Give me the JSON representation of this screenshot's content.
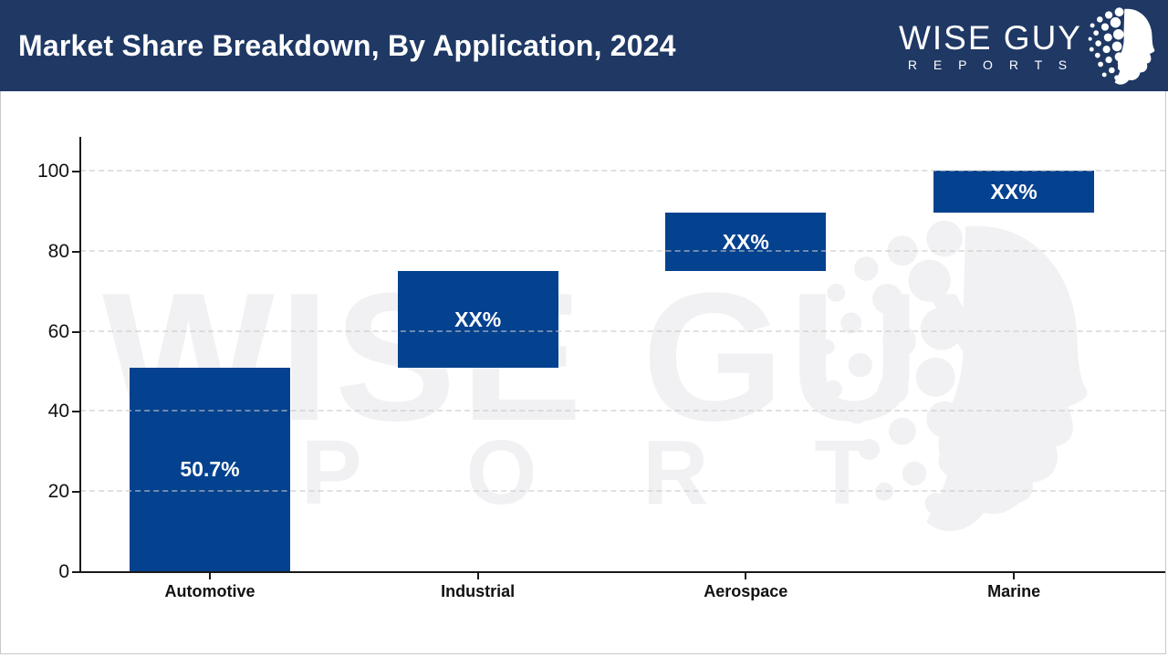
{
  "header": {
    "title": "Market Share Breakdown, By Application, 2024",
    "bg_color": "#1f3864",
    "logo": {
      "line1": "WISE GUY",
      "line2": "R E P O R T S"
    }
  },
  "watermark": {
    "line1": "WISE GUY",
    "line2": "P O R T S"
  },
  "chart_data": {
    "type": "bar",
    "subtype": "waterfall",
    "title": "Market Share Breakdown, By Application, 2024",
    "categories": [
      "Automotive",
      "Industrial",
      "Aerospace",
      "Marine"
    ],
    "segments": [
      {
        "category": "Automotive",
        "start": 0,
        "end": 50.7,
        "label": "50.7%"
      },
      {
        "category": "Industrial",
        "start": 50.7,
        "end": 74.9,
        "label": "XX%"
      },
      {
        "category": "Aerospace",
        "start": 74.9,
        "end": 89.5,
        "label": "XX%"
      },
      {
        "category": "Marine",
        "start": 89.5,
        "end": 100,
        "label": "XX%"
      }
    ],
    "yticks": [
      0,
      20,
      40,
      60,
      80,
      100
    ],
    "ylim": [
      0,
      108
    ],
    "xlabel": "",
    "ylabel": "",
    "bar_color": "#04418f",
    "grid": {
      "axis": "y",
      "style": "dashed"
    },
    "legend": null
  }
}
